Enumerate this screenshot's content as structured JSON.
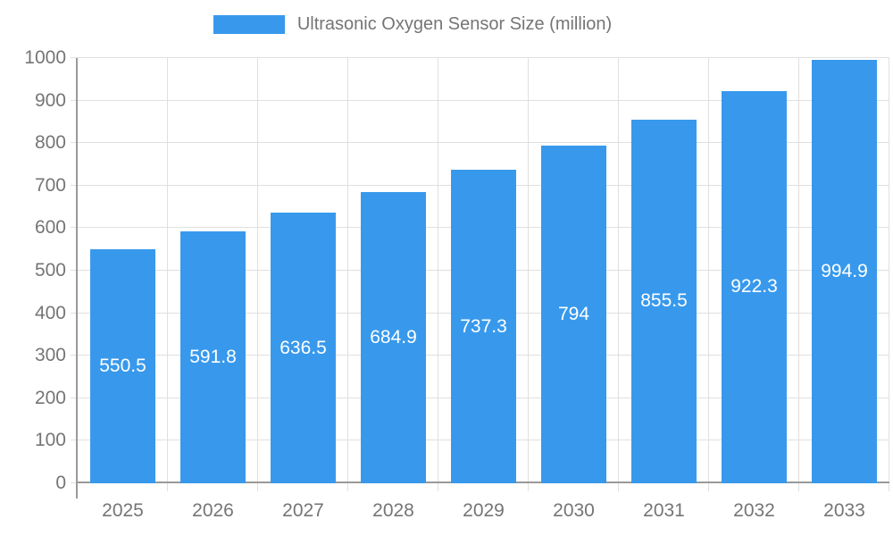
{
  "chart_data": {
    "type": "bar",
    "title": "Ultrasonic Oxygen Sensor Size (million)",
    "legend": "Ultrasonic Oxygen Sensor Size (million)",
    "legend_position": "top-center",
    "categories": [
      "2025",
      "2026",
      "2027",
      "2028",
      "2029",
      "2030",
      "2031",
      "2032",
      "2033"
    ],
    "series": [
      {
        "name": "Ultrasonic Oxygen Sensor Size (million)",
        "values": [
          550.5,
          591.8,
          636.5,
          684.9,
          737.3,
          794,
          855.5,
          922.3,
          994.9
        ]
      }
    ],
    "data_labels": [
      "550.5",
      "591.8",
      "636.5",
      "684.9",
      "737.3",
      "794",
      "855.5",
      "922.3",
      "994.9"
    ],
    "data_label_position": "inside-center",
    "xlabel": "",
    "ylabel": "",
    "ylim": [
      0,
      1000
    ],
    "ytick_step": 100,
    "yticks": [
      0,
      100,
      200,
      300,
      400,
      500,
      600,
      700,
      800,
      900,
      1000
    ],
    "grid": "both"
  },
  "colors": {
    "bar": "#3899EC",
    "grid": "#E0E0E0",
    "axis": "#999999",
    "tick_label": "#757575",
    "bar_label": "#FFFFFF",
    "background": "#FFFFFF"
  }
}
